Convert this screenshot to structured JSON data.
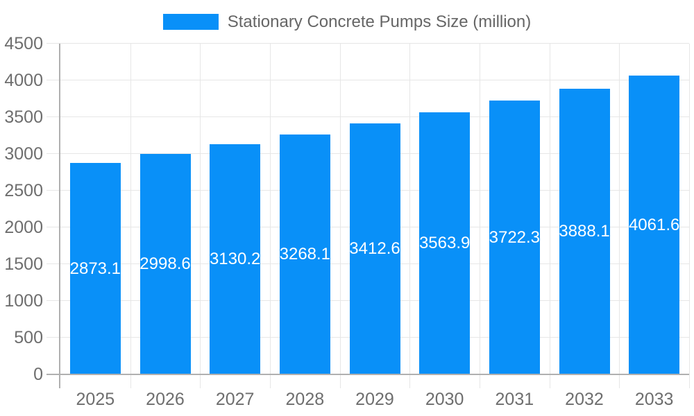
{
  "legend": {
    "label": "Stationary Concrete Pumps Size (million)"
  },
  "chart_data": {
    "type": "bar",
    "title": "Stationary Concrete Pumps Size (million)",
    "categories": [
      "2025",
      "2026",
      "2027",
      "2028",
      "2029",
      "2030",
      "2031",
      "2032",
      "2033"
    ],
    "series": [
      {
        "name": "Stationary Concrete Pumps Size (million)",
        "values": [
          2873.1,
          2998.6,
          3130.2,
          3268.1,
          3412.6,
          3563.9,
          3722.3,
          3888.1,
          4061.6
        ]
      }
    ],
    "data_labels": [
      "2873.1",
      "2998.6",
      "3130.2",
      "3268.1",
      "3412.6",
      "3563.9",
      "3722.3",
      "3888.1",
      "4061.6"
    ],
    "xlabel": "",
    "ylabel": "",
    "ylim": [
      0,
      4500
    ],
    "yticks": [
      0,
      500,
      1000,
      1500,
      2000,
      2500,
      3000,
      3500,
      4000,
      4500
    ],
    "grid": true,
    "legend_position": "top-center",
    "colors": {
      "bar": "#0990f8",
      "grid": "#e6e6e6",
      "axis": "#b0b0b0",
      "tick_label": "#6e6e6e",
      "value_label": "#ffffff",
      "background": "#ffffff"
    }
  }
}
